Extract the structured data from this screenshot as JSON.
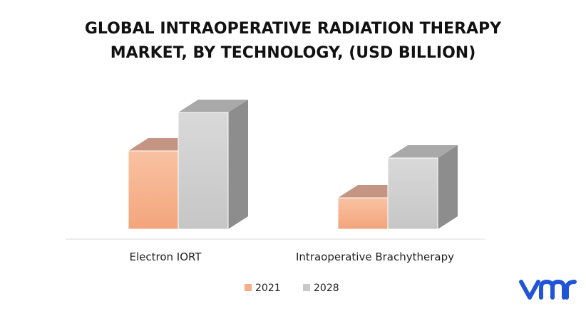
{
  "chart_data": {
    "type": "bar",
    "style": "3d-clustered-column",
    "title_lines": [
      "GLOBAL INTRAOPERATIVE RADIATION THERAPY",
      "MARKET, BY TECHNOLOGY, (USD BILLION)"
    ],
    "categories": [
      "Electron IORT",
      "Intraoperative Brachytherapy"
    ],
    "series": [
      {
        "name": "2021",
        "values": [
          0.55,
          0.22
        ]
      },
      {
        "name": "2028",
        "values": [
          0.82,
          0.5
        ]
      }
    ],
    "ylim": [
      0,
      1
    ],
    "grid": false,
    "legend": "bottom",
    "colors": {
      "2021": {
        "front_top": "#f9c2a2",
        "front_bottom": "#f3a57c",
        "top": "#c49583",
        "side": "#c7937b"
      },
      "2028": {
        "front_top": "#d9d9d9",
        "front_bottom": "#c6c6c6",
        "top": "#a9a9a9",
        "side": "#8d8d8d"
      },
      "axis": "#d9d9d9"
    }
  },
  "legend": {
    "label_2021": "2021",
    "label_2028": "2028"
  },
  "logo": {
    "icon": "vmr-logo-icon",
    "color": "#1f55d6"
  }
}
